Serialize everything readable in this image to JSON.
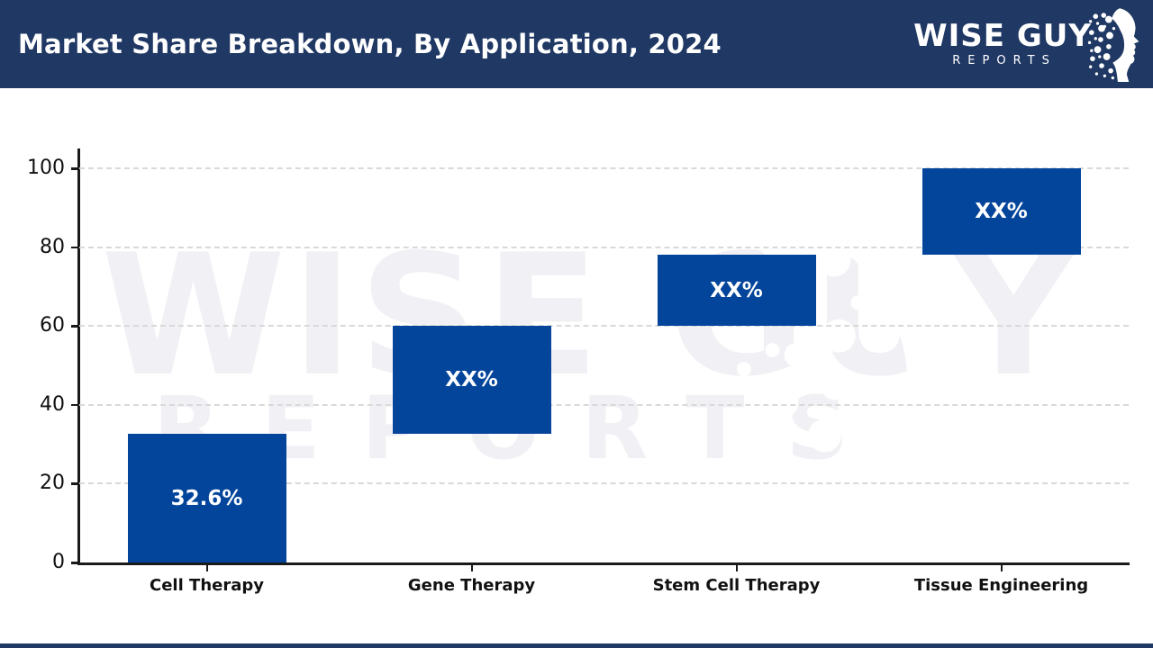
{
  "header": {
    "title": "Market Share Breakdown, By Application, 2024",
    "bg_color": "#203864",
    "logo": {
      "line1": "WISE GUY",
      "line2": "REPORTS"
    }
  },
  "watermark": {
    "line1": "WISE GUY",
    "line2": "REPORTS"
  },
  "chart_data": {
    "type": "bar",
    "subtype": "waterfall",
    "title": "Market Share Breakdown, By Application, 2024",
    "categories": [
      "Cell Therapy",
      "Gene Therapy",
      "Stem Cell Therapy",
      "Tissue Engineering"
    ],
    "segments": [
      {
        "category": "Cell Therapy",
        "start": 0,
        "end": 32.6,
        "label": "32.6%"
      },
      {
        "category": "Gene Therapy",
        "start": 32.6,
        "end": 60,
        "label": "XX%"
      },
      {
        "category": "Stem Cell Therapy",
        "start": 60,
        "end": 78,
        "label": "XX%"
      },
      {
        "category": "Tissue Engineering",
        "start": 78,
        "end": 100,
        "label": "XX%"
      }
    ],
    "yticks": [
      0,
      20,
      40,
      60,
      80,
      100
    ],
    "ylim": [
      0,
      105
    ],
    "xlabel": "",
    "ylabel": "",
    "bar_color": "#04459c",
    "grid": "horizontal dashed",
    "gridline_color": "#d9d9d9",
    "legend": "none"
  }
}
